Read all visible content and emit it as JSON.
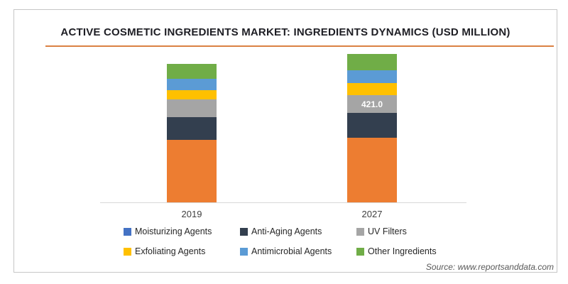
{
  "title": "ACTIVE COSMETIC INGREDIENTS MARKET: INGREDIENTS DYNAMICS (USD MILLION)",
  "source": {
    "text": "Source: www.reportsanddata.com"
  },
  "colors": {
    "title_text": "#1e1e24",
    "title_underline": "#db8144",
    "card_border": "#c6c6c6",
    "axis_line": "#d9d9d9",
    "tick_text": "#404040",
    "legend_text": "#262626",
    "source_text": "#595959",
    "data_label_text": "#ffffff"
  },
  "chart_data": {
    "type": "bar",
    "stacked": true,
    "title": "ACTIVE COSMETIC INGREDIENTS MARKET: INGREDIENTS DYNAMICS (USD MILLION)",
    "unit": "USD Million",
    "categories": [
      "2019",
      "2027"
    ],
    "series": [
      {
        "name": "Moisturizing Agents",
        "bar_color": "#ED7D31",
        "legend_color": "#4472C4",
        "values": [
          1480,
          1530
        ]
      },
      {
        "name": "Anti-Aging Agents",
        "bar_color": "#333F4F",
        "legend_color": "#333F4F",
        "values": [
          540,
          590
        ]
      },
      {
        "name": "UV Filters",
        "bar_color": "#A5A5A5",
        "legend_color": "#A5A5A5",
        "values": [
          421,
          421
        ]
      },
      {
        "name": "Exfoliating Agents",
        "bar_color": "#FFC000",
        "legend_color": "#FFC000",
        "values": [
          225,
          280
        ]
      },
      {
        "name": "Antimicrobial Agents",
        "bar_color": "#5B9BD5",
        "legend_color": "#5B9BD5",
        "values": [
          260,
          305
        ]
      },
      {
        "name": "Other Ingredients",
        "bar_color": "#70AD47",
        "legend_color": "#70AD47",
        "values": [
          355,
          395
        ]
      }
    ],
    "data_labels": [
      {
        "category_index": 1,
        "series_index": 2,
        "text": "421.0"
      }
    ],
    "legend_position": "bottom",
    "grid": false,
    "y_axis_visible": false
  }
}
